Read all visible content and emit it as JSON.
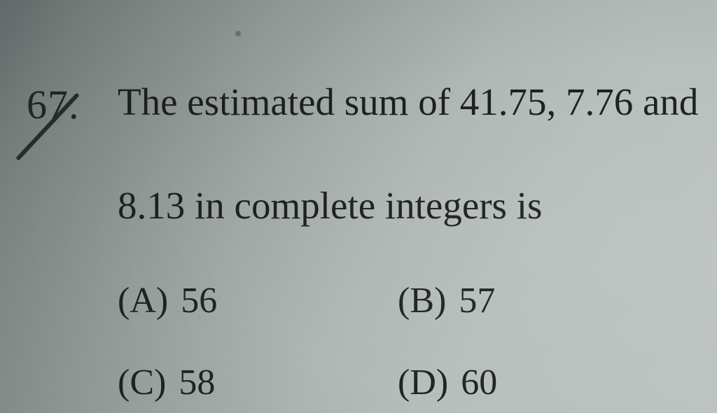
{
  "question": {
    "number": "67.",
    "line1": "The estimated sum of 41.75, 7.76 and",
    "line2": "8.13 in complete integers is",
    "options": {
      "a": {
        "label": "(A)",
        "value": "56"
      },
      "b": {
        "label": "(B)",
        "value": "57"
      },
      "c": {
        "label": "(C)",
        "value": "58"
      },
      "d": {
        "label": "(D)",
        "value": "60"
      }
    }
  },
  "style": {
    "text_color": "#1a1d1c",
    "qnum_fontsize": 58,
    "body_fontsize": 55,
    "option_fontsize": 52,
    "font_family": "Times New Roman",
    "background_gradient": [
      "#6d7575",
      "#97a09d",
      "#b0b8b5",
      "#bcc4c1"
    ],
    "strike_color": "#2a2e2d"
  }
}
